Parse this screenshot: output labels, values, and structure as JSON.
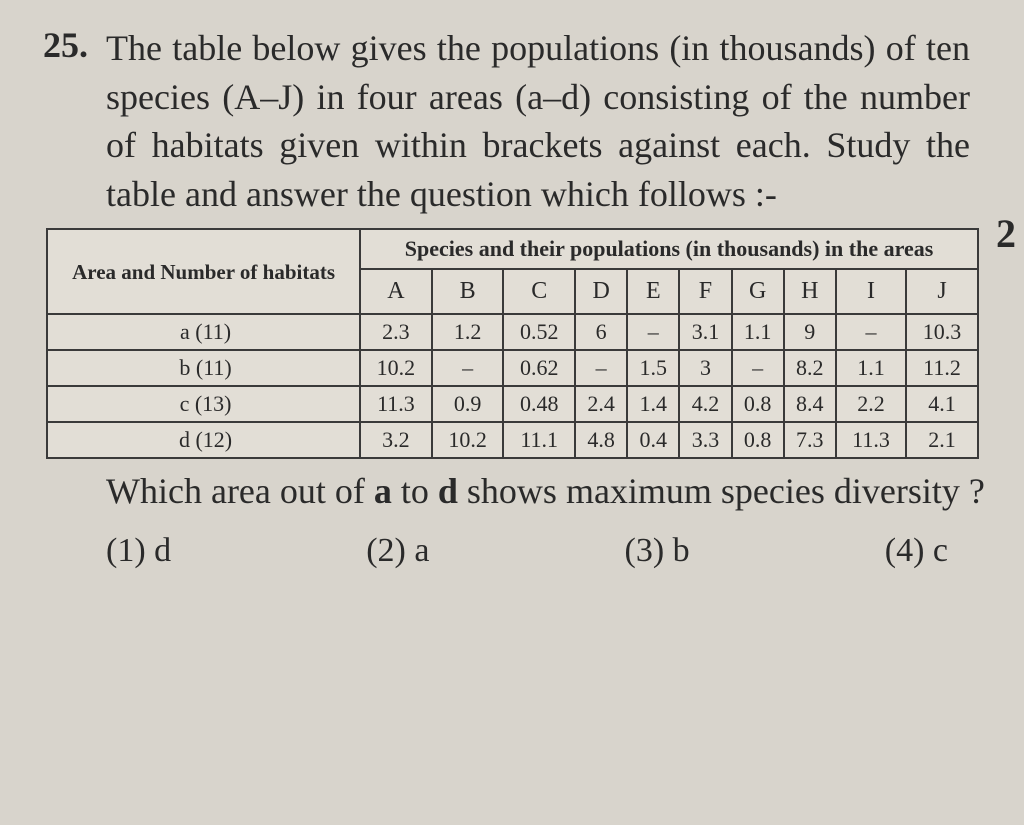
{
  "question": {
    "number": "25.",
    "text": "The table below gives the populations (in thousands) of ten species (A–J) in four areas (a–d) consisting of the number of habitats given within brackets against each. Study the table and answer the question which follows :-",
    "followup": "Which area out of a to d shows maximum species diversity ?"
  },
  "table": {
    "area_header": "Area and Number of habitats",
    "species_header": "Species and their populations (in thousands) in the areas",
    "columns": [
      "A",
      "B",
      "C",
      "D",
      "E",
      "F",
      "G",
      "H",
      "I",
      "J"
    ],
    "rows": [
      {
        "area": "a (11)",
        "vals": [
          "2.3",
          "1.2",
          "0.52",
          "6",
          "–",
          "3.1",
          "1.1",
          "9",
          "–",
          "10.3"
        ]
      },
      {
        "area": "b (11)",
        "vals": [
          "10.2",
          "–",
          "0.62",
          "–",
          "1.5",
          "3",
          "–",
          "8.2",
          "1.1",
          "11.2"
        ]
      },
      {
        "area": "c (13)",
        "vals": [
          "11.3",
          "0.9",
          "0.48",
          "2.4",
          "1.4",
          "4.2",
          "0.8",
          "8.4",
          "2.2",
          "4.1"
        ]
      },
      {
        "area": "d (12)",
        "vals": [
          "3.2",
          "10.2",
          "11.1",
          "4.8",
          "0.4",
          "3.3",
          "0.8",
          "7.3",
          "11.3",
          "2.1"
        ]
      }
    ]
  },
  "options": {
    "opt1": "(1) d",
    "opt2": "(2) a",
    "opt3": "(3) b",
    "opt4": "(4) c"
  },
  "edge_fragment": "2"
}
